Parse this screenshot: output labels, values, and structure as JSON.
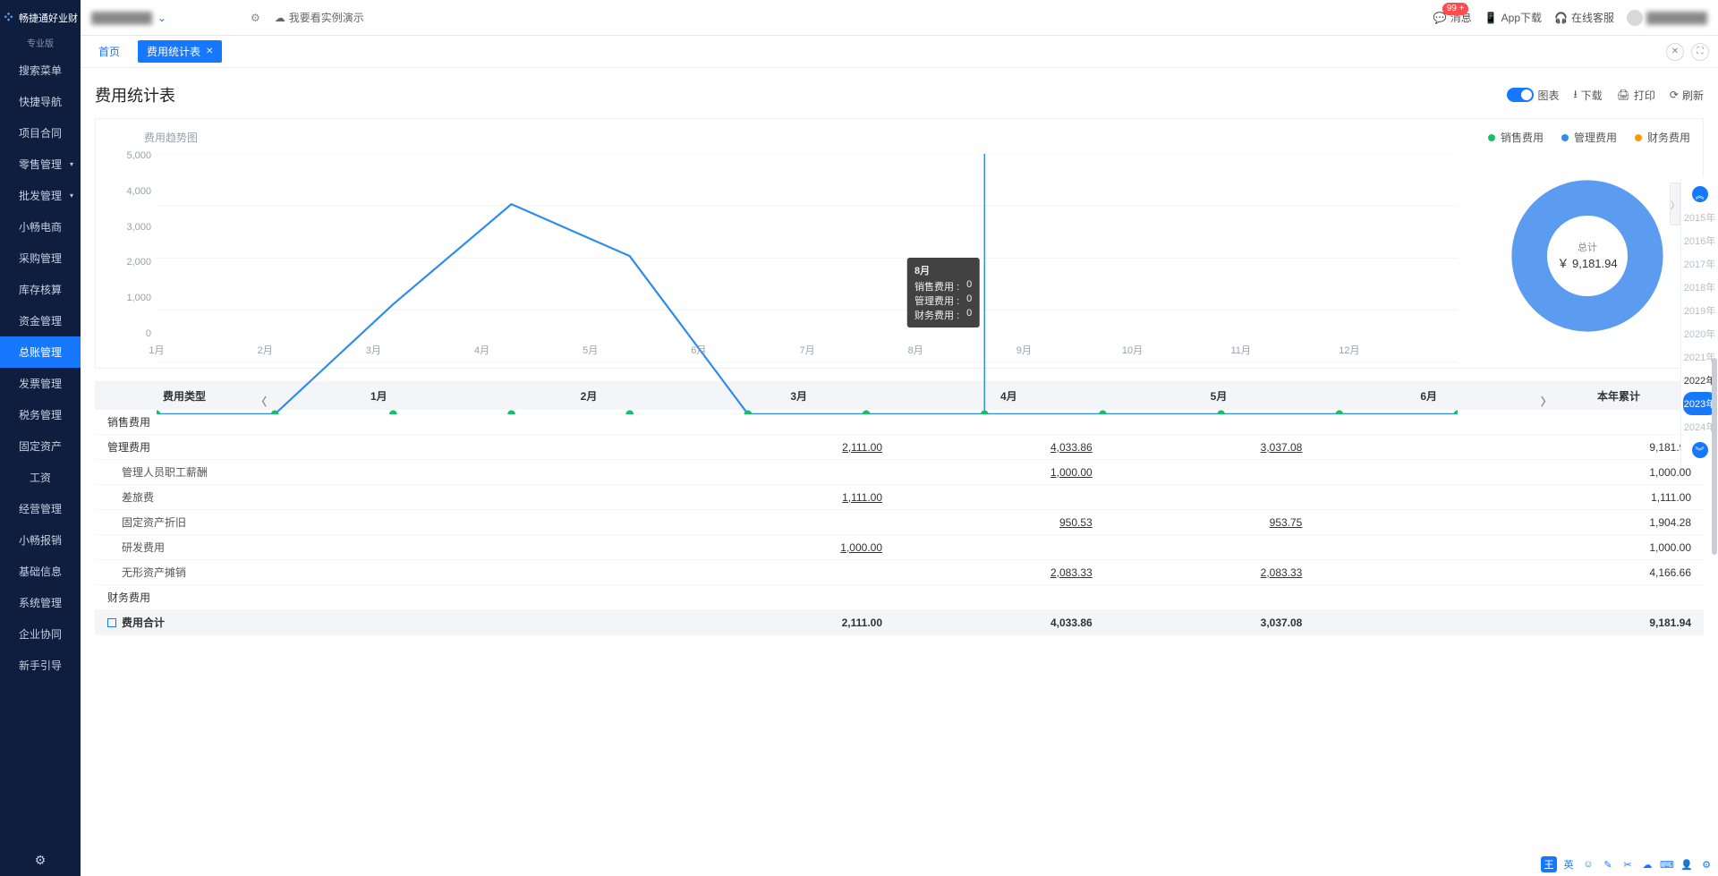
{
  "brand": {
    "name": "畅捷通好业财",
    "sub": "专业版"
  },
  "sidebar": {
    "items": [
      {
        "label": "搜索菜单",
        "expandable": false
      },
      {
        "label": "快捷导航",
        "expandable": false
      },
      {
        "label": "项目合同",
        "expandable": false
      },
      {
        "label": "零售管理",
        "expandable": true
      },
      {
        "label": "批发管理",
        "expandable": true
      },
      {
        "label": "小畅电商",
        "expandable": false
      },
      {
        "label": "采购管理",
        "expandable": false
      },
      {
        "label": "库存核算",
        "expandable": false
      },
      {
        "label": "资金管理",
        "expandable": false
      },
      {
        "label": "总账管理",
        "expandable": false,
        "active": true
      },
      {
        "label": "发票管理",
        "expandable": false
      },
      {
        "label": "税务管理",
        "expandable": false
      },
      {
        "label": "固定资产",
        "expandable": false
      },
      {
        "label": "工资",
        "expandable": false
      },
      {
        "label": "经营管理",
        "expandable": false
      },
      {
        "label": "小畅报销",
        "expandable": false
      },
      {
        "label": "基础信息",
        "expandable": false
      },
      {
        "label": "系统管理",
        "expandable": false
      },
      {
        "label": "企业协同",
        "expandable": false
      },
      {
        "label": "新手引导",
        "expandable": false
      }
    ]
  },
  "topbar": {
    "tenant": "████████",
    "demo": "我要看实例演示",
    "msg": "消息",
    "msg_badge": "99 +",
    "download": "App下载",
    "service": "在线客服",
    "user": "████████"
  },
  "tabs": {
    "home": "首页",
    "active": "费用统计表"
  },
  "page": {
    "title": "费用统计表",
    "actions": {
      "chart": "图表",
      "download": "下载",
      "print": "打印",
      "refresh": "刷新"
    }
  },
  "chart": {
    "title": "费用趋势图",
    "type": "line",
    "legend": [
      {
        "label": "销售费用",
        "color": "#19be6b"
      },
      {
        "label": "管理费用",
        "color": "#2d8cf0"
      },
      {
        "label": "财务费用",
        "color": "#ff9900"
      }
    ],
    "x_categories": [
      "1月",
      "2月",
      "3月",
      "4月",
      "5月",
      "6月",
      "7月",
      "8月",
      "9月",
      "10月",
      "11月",
      "12月"
    ],
    "y": {
      "ticks": [
        "5,000",
        "4,000",
        "3,000",
        "2,000",
        "1,000",
        "0"
      ],
      "ylim": [
        0,
        5000
      ],
      "step": 1000
    },
    "series": {
      "sales": [
        0,
        0,
        0,
        0,
        0,
        0,
        0,
        0,
        0,
        0,
        0,
        0
      ],
      "admin": [
        0,
        0,
        2111,
        4034,
        3037,
        0,
        0,
        0,
        0,
        0,
        0,
        0
      ],
      "finance": [
        0,
        0,
        0,
        0,
        0,
        0,
        0,
        0,
        0,
        0,
        0,
        0
      ]
    },
    "marker_color": "#19be6b",
    "line_color": "#2d8cf0",
    "focus_line_color": "#2d8cf0",
    "grid_color": "#f5f6f8",
    "tooltip": {
      "title": "8月",
      "rows": [
        {
          "label": "销售费用 :",
          "value": "0"
        },
        {
          "label": "管理费用 :",
          "value": "0"
        },
        {
          "label": "财务费用 :",
          "value": "0"
        }
      ],
      "x_index": 7
    }
  },
  "donut": {
    "center_label": "总计",
    "center_value": "￥ 9,181.94",
    "color_main": "#5b9bf0",
    "color_bg": "#eaf1fd"
  },
  "table": {
    "col0_header": "费用类型",
    "month_headers": [
      "1月",
      "2月",
      "3月",
      "4月",
      "5月",
      "6月"
    ],
    "year_header": "本年累计",
    "rows": [
      {
        "label": "销售费用",
        "indent": false,
        "m": [
          "",
          "",
          "",
          "",
          "",
          ""
        ],
        "y": ""
      },
      {
        "label": "管理费用",
        "indent": false,
        "m": [
          "",
          "",
          "2,111.00",
          "4,033.86",
          "3,037.08",
          ""
        ],
        "y": "9,181.94",
        "link": [
          2,
          3,
          4
        ]
      },
      {
        "label": "管理人员职工薪酬",
        "indent": true,
        "m": [
          "",
          "",
          "",
          "1,000.00",
          "",
          ""
        ],
        "y": "1,000.00",
        "link": [
          3
        ]
      },
      {
        "label": "差旅费",
        "indent": true,
        "m": [
          "",
          "",
          "1,111.00",
          "",
          "",
          ""
        ],
        "y": "1,111.00",
        "link": [
          2
        ]
      },
      {
        "label": "固定资产折旧",
        "indent": true,
        "m": [
          "",
          "",
          "",
          "950.53",
          "953.75",
          ""
        ],
        "y": "1,904.28",
        "link": [
          3,
          4
        ]
      },
      {
        "label": "研发费用",
        "indent": true,
        "m": [
          "",
          "",
          "1,000.00",
          "",
          "",
          ""
        ],
        "y": "1,000.00",
        "link": [
          2
        ]
      },
      {
        "label": "无形资产摊销",
        "indent": true,
        "m": [
          "",
          "",
          "",
          "2,083.33",
          "2,083.33",
          ""
        ],
        "y": "4,166.66",
        "link": [
          3,
          4
        ]
      },
      {
        "label": "财务费用",
        "indent": false,
        "m": [
          "",
          "",
          "",
          "",
          "",
          ""
        ],
        "y": ""
      }
    ],
    "total": {
      "label": "费用合计",
      "m": [
        "",
        "",
        "2,111.00",
        "4,033.86",
        "3,037.08",
        ""
      ],
      "y": "9,181.94"
    }
  },
  "years": {
    "list": [
      "2015年",
      "2016年",
      "2017年",
      "2018年",
      "2019年",
      "2020年",
      "2021年",
      "2022年",
      "2023年",
      "2024年"
    ],
    "context": "2022年",
    "active": "2023年"
  }
}
